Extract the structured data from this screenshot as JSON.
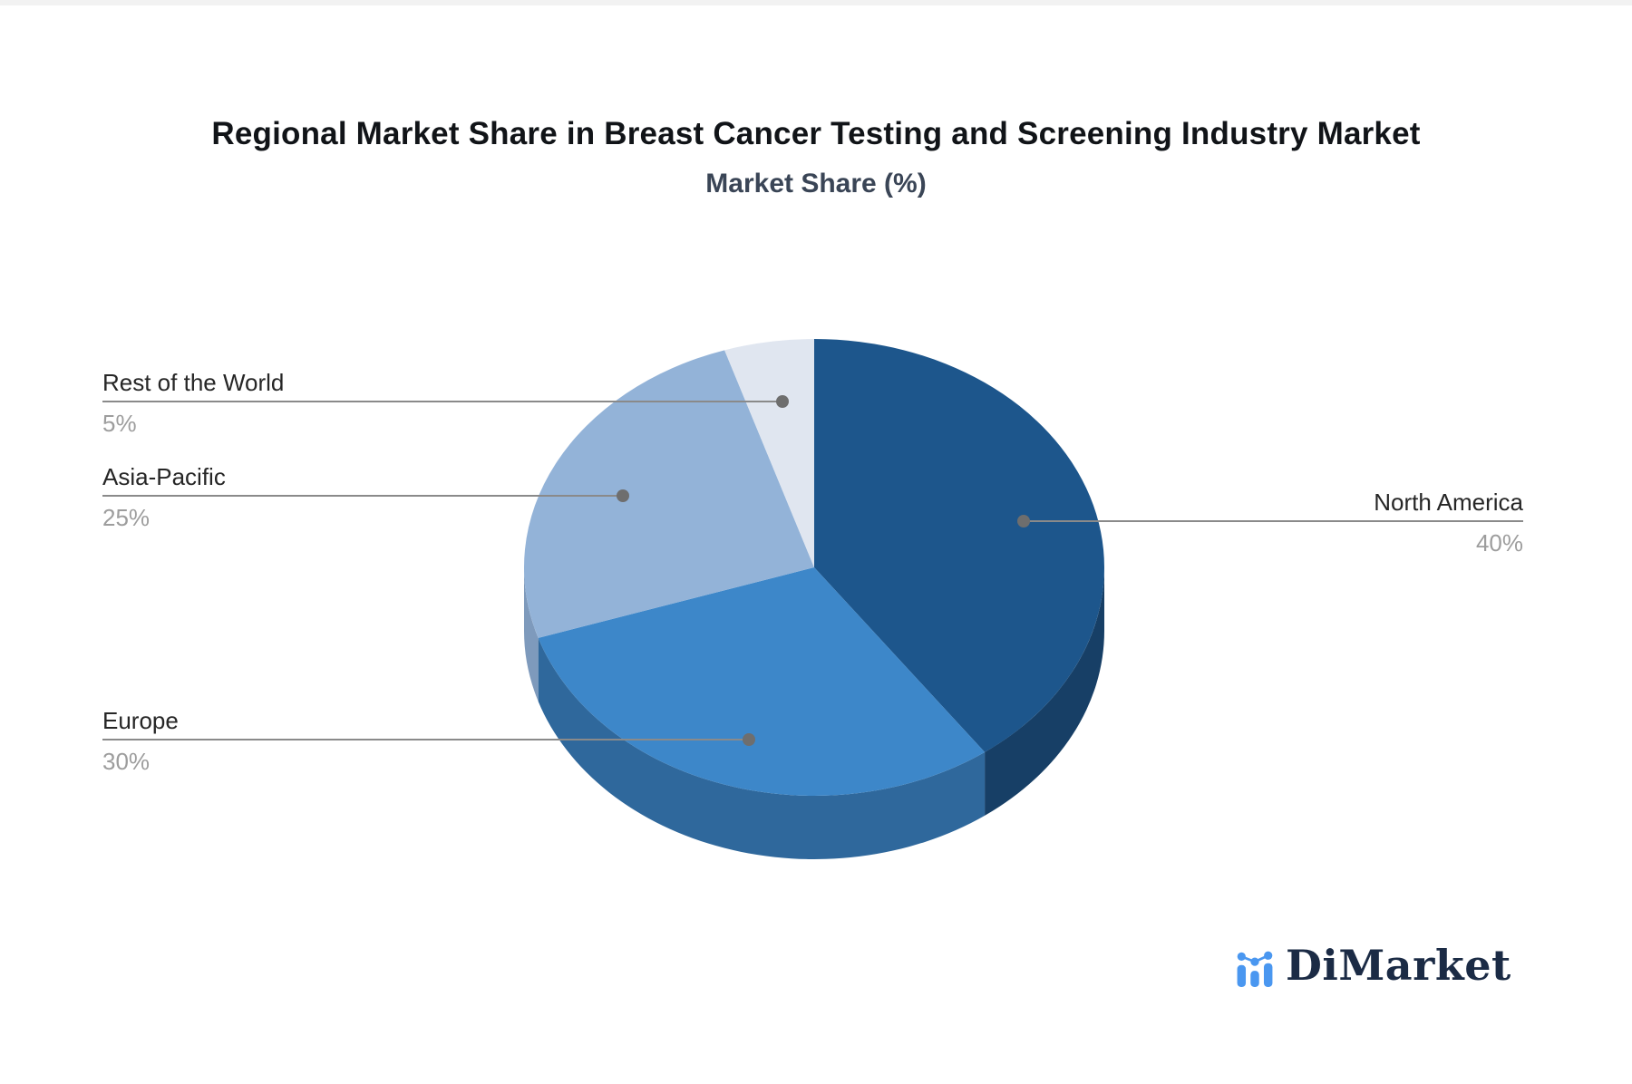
{
  "chart_data": {
    "type": "pie",
    "style": "3d",
    "title": "Regional Market Share in Breast Cancer Testing and Screening Industry Market",
    "subtitle": "Market Share (%)",
    "start_angle": "12 o'clock",
    "direction": "clockwise",
    "legend_position": "leader-line labels (left and right of pie)",
    "segments": [
      {
        "label": "North America",
        "value": 40,
        "display": "40%",
        "color": "#1d568c",
        "side_color": "#173f66"
      },
      {
        "label": "Europe",
        "value": 30,
        "display": "30%",
        "color": "#3d87c9",
        "side_color": "#2f689c"
      },
      {
        "label": "Asia-Pacific",
        "value": 25,
        "display": "25%",
        "color": "#93b3d8",
        "side_color": "#7e9abc"
      },
      {
        "label": "Rest of the World",
        "value": 5,
        "display": "5%",
        "color": "#e0e6f0",
        "side_color": "#c4cedd"
      }
    ],
    "leader_line_color": "#8a8a8a",
    "leader_dot_color": "#6e6e6e",
    "label_color": "#262626",
    "value_color": "#9d9d9d"
  },
  "logo": {
    "text": "DiMarket",
    "icon": "bar-line-chart-icon",
    "icon_color": "#4a97f0",
    "text_color": "#1b2b45"
  }
}
